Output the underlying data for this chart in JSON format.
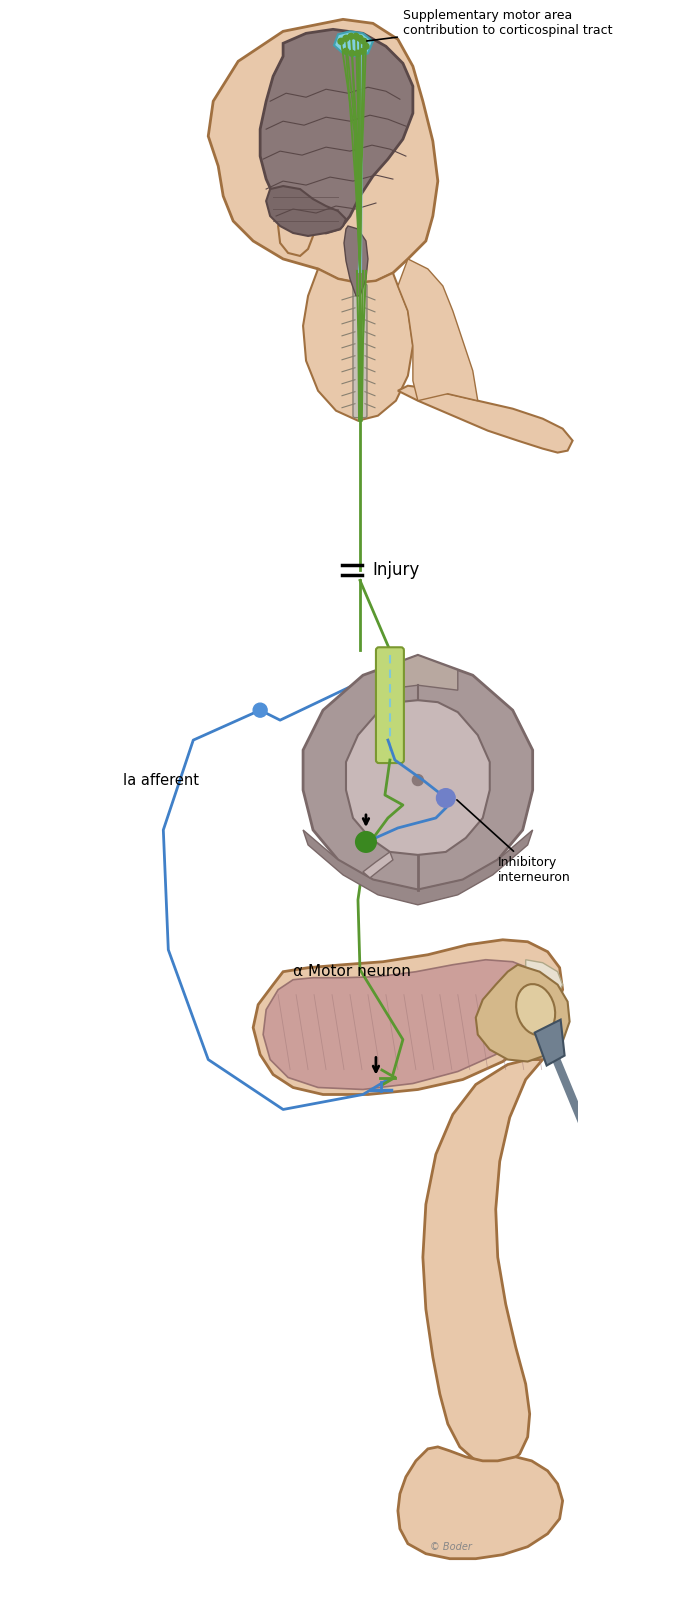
{
  "bg_color": "#ffffff",
  "skin_color": "#e8c8aa",
  "skin_edge": "#a07040",
  "skin_light": "#f0ddc8",
  "brain_color": "#8a7878",
  "brain_edge": "#5a4848",
  "brain_light": "#a09090",
  "spinal_outer": "#a89898",
  "spinal_inner": "#c8b8b8",
  "spinal_edge": "#7a6868",
  "green_nerve": "#5a9830",
  "blue_nerve": "#4080c8",
  "blue_dot": "#5090d8",
  "cyan_nerve": "#80c8d8",
  "alpha_dot": "#3a8820",
  "inh_dot": "#7080c8",
  "muscle_color": "#c89098",
  "muscle_edge": "#906070",
  "knee_color": "#d4b88a",
  "knee_edge": "#907040",
  "hammer_color": "#708090",
  "hammer_edge": "#405060",
  "sma_cyan": "#80d0e0",
  "sma_edge": "#40a0b0",
  "injury_label": "Injury",
  "ia_afferent_label": "Ia afferent",
  "inhibitory_label": "Inhibitory\ninterneuron",
  "alpha_motor_label": "α Motor neuron",
  "sma_label": "Supplementary motor area\ncontribution to corticospinal tract",
  "fig_width": 6.86,
  "fig_height": 16.04
}
